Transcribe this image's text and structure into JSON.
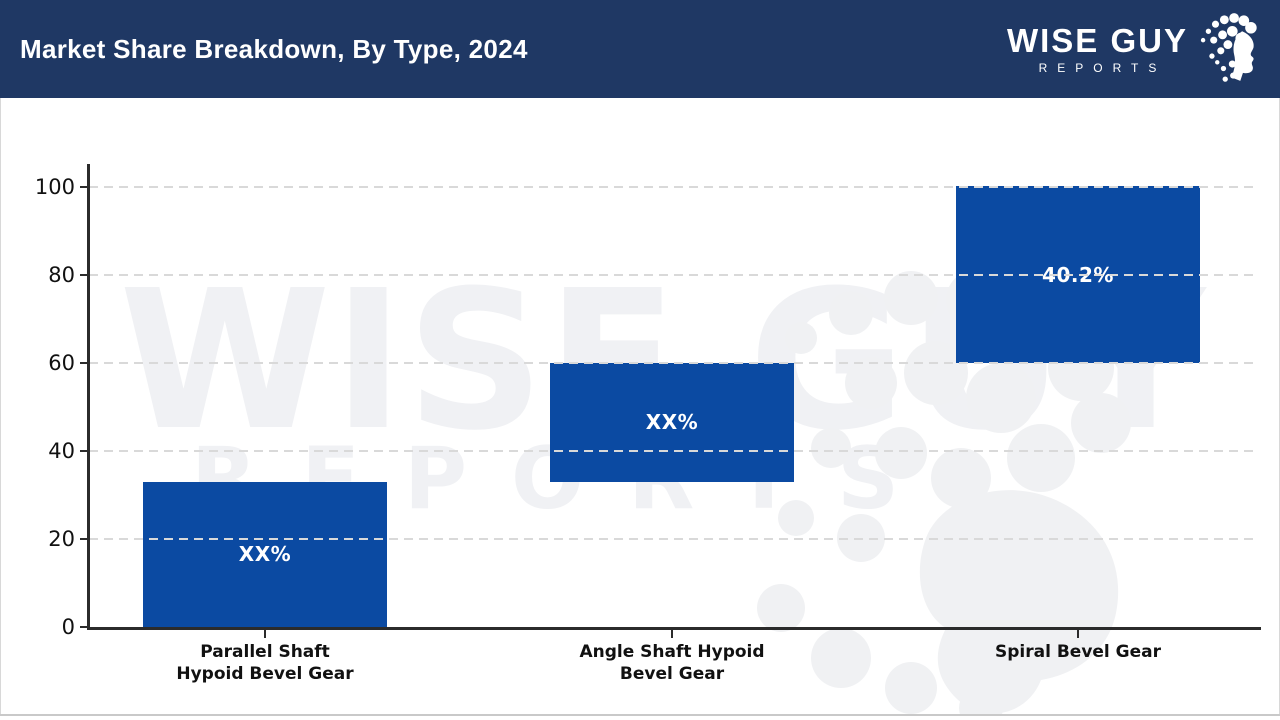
{
  "header": {
    "title": "Market Share Breakdown, By Type, 2024",
    "logo": {
      "line1": "WISE GUY",
      "line2": "REPORTS"
    }
  },
  "watermark": {
    "line1": "WISE GUY",
    "line2": "REPORTS"
  },
  "colors": {
    "header_bg": "#1f3864",
    "bar": "#0b4aa2",
    "grid": "#d9d9d9",
    "axis": "#2b2b2b",
    "watermark": "#f0f1f4",
    "bar_label": "#ffffff"
  },
  "chart_data": {
    "type": "bar",
    "variant": "waterfall-floating-bars",
    "title": "Market Share Breakdown, By Type, 2024",
    "categories": [
      "Parallel Shaft\nHypoid Bevel Gear",
      "Angle Shaft Hypoid\nBevel Gear",
      "Spiral Bevel Gear"
    ],
    "segments": [
      {
        "label": "Parallel Shaft Hypoid Bevel Gear",
        "start": 0,
        "end": 33,
        "value": null,
        "value_label": "XX%"
      },
      {
        "label": "Angle Shaft Hypoid Bevel Gear",
        "start": 33,
        "end": 60,
        "value": null,
        "value_label": "XX%"
      },
      {
        "label": "Spiral Bevel Gear",
        "start": 60,
        "end": 100.2,
        "value": 40.2,
        "value_label": "40.2%"
      }
    ],
    "yticks": [
      0,
      20,
      40,
      60,
      80,
      100
    ],
    "ylim": [
      0,
      105
    ],
    "xlabel": "",
    "ylabel": "",
    "grid": "dashed-horizontal-over-bars",
    "legend": "none"
  }
}
